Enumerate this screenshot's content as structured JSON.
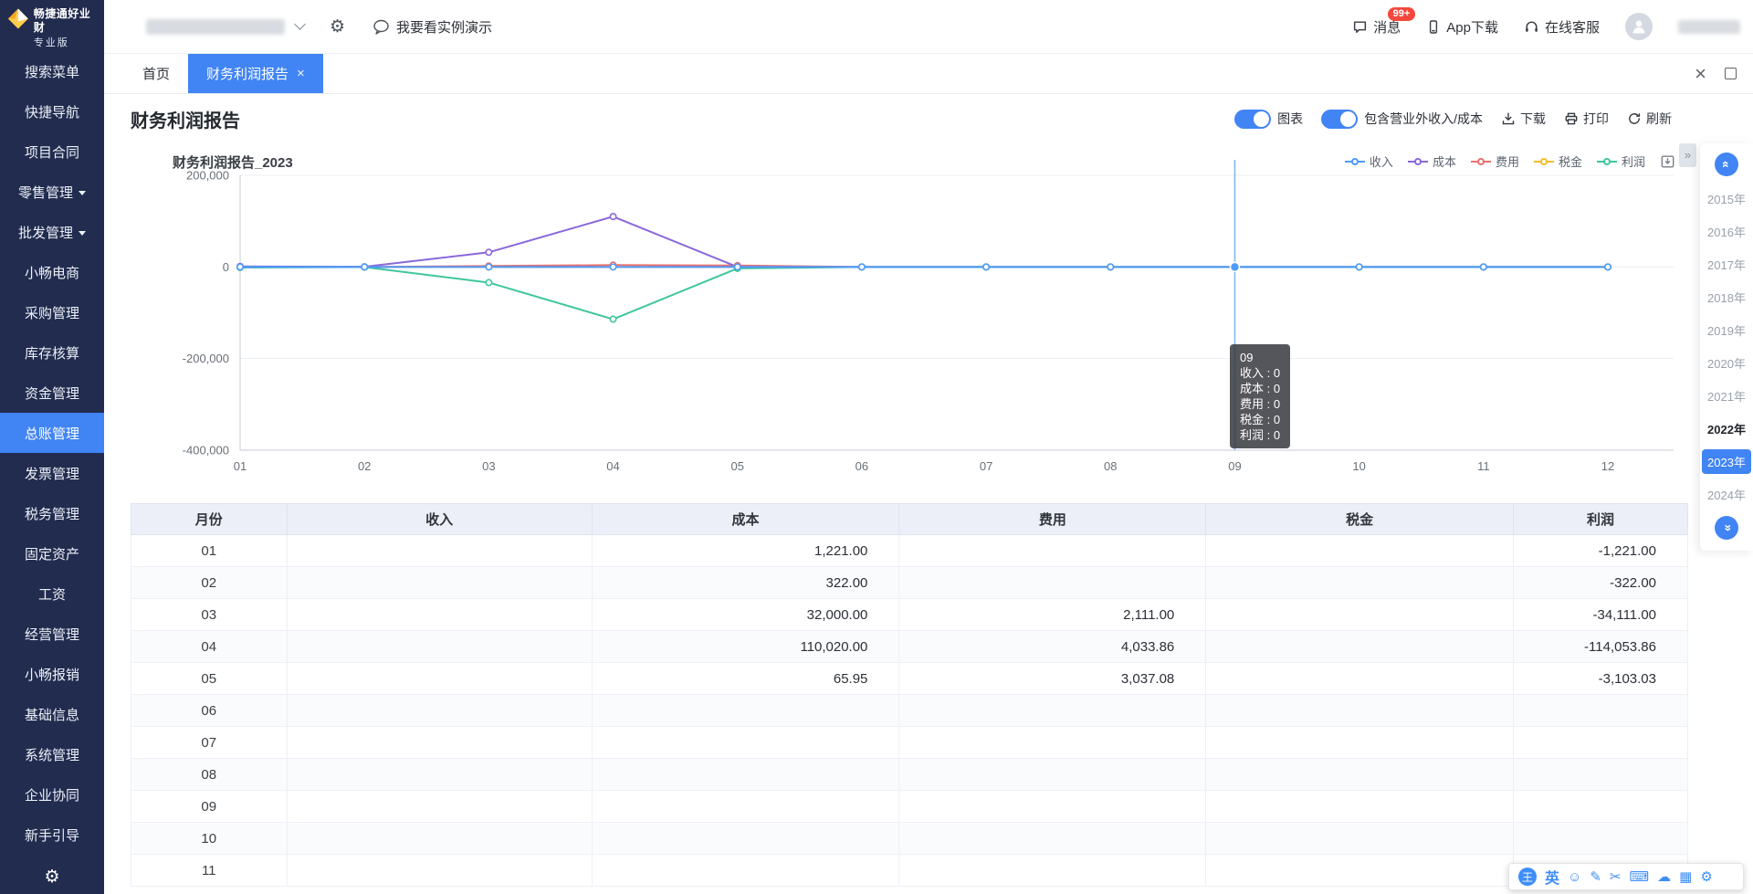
{
  "brand": {
    "name": "畅捷通好业财",
    "edition": "专业版"
  },
  "sidebar": {
    "items": [
      {
        "label": "搜索菜单"
      },
      {
        "label": "快捷导航"
      },
      {
        "label": "项目合同"
      },
      {
        "label": "零售管理",
        "arrow": true
      },
      {
        "label": "批发管理",
        "arrow": true
      },
      {
        "label": "小畅电商"
      },
      {
        "label": "采购管理"
      },
      {
        "label": "库存核算"
      },
      {
        "label": "资金管理"
      },
      {
        "label": "总账管理",
        "active": true
      },
      {
        "label": "发票管理"
      },
      {
        "label": "税务管理"
      },
      {
        "label": "固定资产"
      },
      {
        "label": "工资"
      },
      {
        "label": "经营管理"
      },
      {
        "label": "小畅报销"
      },
      {
        "label": "基础信息"
      },
      {
        "label": "系统管理"
      },
      {
        "label": "企业协同"
      },
      {
        "label": "新手引导"
      }
    ]
  },
  "topbar": {
    "demo_label": "我要看实例演示",
    "messages_label": "消息",
    "messages_badge": "99+",
    "app_download_label": "App下载",
    "online_service_label": "在线客服"
  },
  "tabs": [
    {
      "label": "首页",
      "active": false
    },
    {
      "label": "财务利润报告",
      "active": true,
      "closable": true
    }
  ],
  "page": {
    "title": "财务利润报告",
    "controls": {
      "chart_toggle_label": "图表",
      "chart_toggle_on": true,
      "include_toggle_label": "包含营业外收入/成本",
      "include_toggle_on": true,
      "download_label": "下载",
      "print_label": "打印",
      "refresh_label": "刷新"
    }
  },
  "chart_data": {
    "type": "line",
    "title": "财务利润报告_2023",
    "x": [
      "01",
      "02",
      "03",
      "04",
      "05",
      "06",
      "07",
      "08",
      "09",
      "10",
      "11",
      "12"
    ],
    "ylim": [
      -400000,
      200000
    ],
    "yticks": [
      {
        "value": 200000,
        "label": "200,000"
      },
      {
        "value": 0,
        "label": "0"
      },
      {
        "value": -200000,
        "label": "-200,000"
      },
      {
        "value": -400000,
        "label": "-400,000"
      }
    ],
    "grid": true,
    "legend_position": "top-right",
    "series": [
      {
        "name": "收入",
        "color": "#4D9BFB",
        "values": [
          0,
          0,
          0,
          0,
          0,
          0,
          0,
          0,
          0,
          0,
          0,
          0
        ]
      },
      {
        "name": "成本",
        "color": "#8A68DA",
        "values": [
          1221,
          322,
          32000,
          110020,
          65.95,
          0,
          0,
          0,
          0,
          0,
          0,
          0
        ]
      },
      {
        "name": "费用",
        "color": "#EB6F6F",
        "values": [
          0,
          0,
          2111,
          4033.86,
          3037.08,
          0,
          0,
          0,
          0,
          0,
          0,
          0
        ]
      },
      {
        "name": "税金",
        "color": "#F2BD2B",
        "values": [
          0,
          0,
          0,
          0,
          0,
          0,
          0,
          0,
          0,
          0,
          0,
          0
        ]
      },
      {
        "name": "利润",
        "color": "#3FC69C",
        "values": [
          -1221,
          -322,
          -34111,
          -114053.86,
          -3103.03,
          0,
          0,
          0,
          0,
          0,
          0,
          0
        ]
      }
    ],
    "tooltip": {
      "title": "09",
      "lines": [
        "收入 : 0",
        "成本 : 0",
        "费用 : 0",
        "税金 : 0",
        "利润 : 0"
      ],
      "month_index": 8
    }
  },
  "table": {
    "columns": [
      "月份",
      "收入",
      "成本",
      "费用",
      "税金",
      "利润"
    ],
    "rows": [
      [
        "01",
        "",
        "1,221.00",
        "",
        "",
        "-1,221.00"
      ],
      [
        "02",
        "",
        "322.00",
        "",
        "",
        "-322.00"
      ],
      [
        "03",
        "",
        "32,000.00",
        "2,111.00",
        "",
        "-34,111.00"
      ],
      [
        "04",
        "",
        "110,020.00",
        "4,033.86",
        "",
        "-114,053.86"
      ],
      [
        "05",
        "",
        "65.95",
        "3,037.08",
        "",
        "-3,103.03"
      ],
      [
        "06",
        "",
        "",
        "",
        "",
        ""
      ],
      [
        "07",
        "",
        "",
        "",
        "",
        ""
      ],
      [
        "08",
        "",
        "",
        "",
        "",
        ""
      ],
      [
        "09",
        "",
        "",
        "",
        "",
        ""
      ],
      [
        "10",
        "",
        "",
        "",
        "",
        ""
      ],
      [
        "11",
        "",
        "",
        "",
        "",
        ""
      ]
    ]
  },
  "year_panel": {
    "years": [
      "2015年",
      "2016年",
      "2017年",
      "2018年",
      "2019年",
      "2020年",
      "2021年",
      "2022年",
      "2023年",
      "2024年"
    ],
    "selected": "2023年",
    "emphasized": "2022年"
  },
  "ime": {
    "logo": "王",
    "mode": "英"
  },
  "colors": {
    "accent": "#4184F4",
    "sidebar_bg": "#212C4F",
    "badge_red": "#F5483D"
  }
}
